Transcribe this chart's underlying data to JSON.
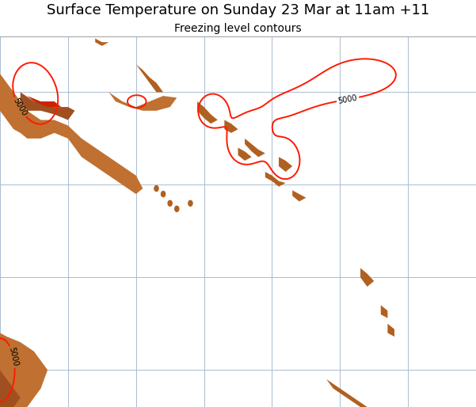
{
  "title": "Surface Temperature on Sunday 23 Mar at 11am +11",
  "subtitle": "Freezing level contours",
  "bg_color": "#c8d4e8",
  "ocean_color": "#c8d4e8",
  "header_bg": "#f0f0f0",
  "title_fontsize": 13,
  "subtitle_fontsize": 10,
  "grid_color": "#aabbd0",
  "contour_color": "#ff0000",
  "contour_label": "5000",
  "map_extent": [
    140,
    175,
    -22,
    -2
  ],
  "fig_width": 6.01,
  "fig_height": 5.14,
  "dpi": 100
}
